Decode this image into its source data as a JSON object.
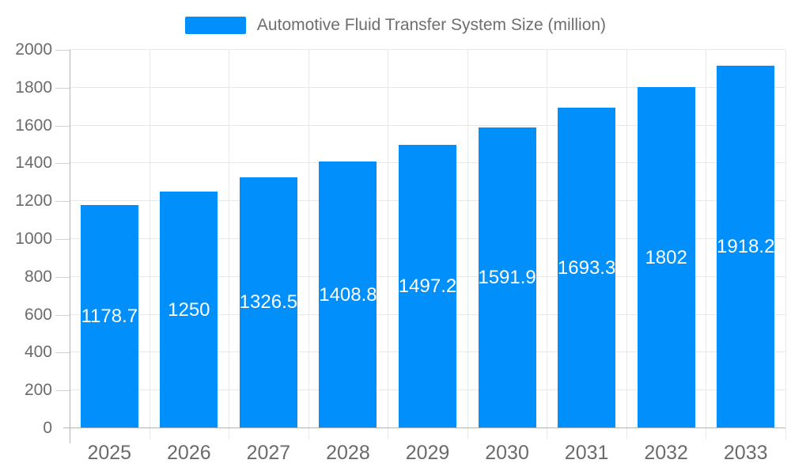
{
  "legend": {
    "label": "Automotive Fluid Transfer System Size (million)"
  },
  "colors": {
    "bar": "#008FFB",
    "bar_value_text": "#ffffff",
    "axis_text": "#6b6b6b",
    "legend_text": "#6e6e6e",
    "grid_line": "#e8e8e8",
    "axis_line": "#b3b3b3",
    "tick_line": "#d2d2d2",
    "background": "#ffffff"
  },
  "chart_data": {
    "type": "bar",
    "title": "Automotive Fluid Transfer System Size (million)",
    "categories": [
      "2025",
      "2026",
      "2027",
      "2028",
      "2029",
      "2030",
      "2031",
      "2032",
      "2033"
    ],
    "values": [
      1178.7,
      1250,
      1326.5,
      1408.8,
      1497.2,
      1591.9,
      1693.3,
      1802,
      1918.2
    ],
    "value_labels": [
      "1178.7",
      "1250",
      "1326.5",
      "1408.8",
      "1497.2",
      "1591.9",
      "1693.3",
      "1802",
      "1918.2"
    ],
    "xlabel": "",
    "ylabel": "",
    "ylim": [
      0,
      2000
    ],
    "yticks": [
      0,
      200,
      400,
      600,
      800,
      1000,
      1200,
      1400,
      1600,
      1800,
      2000
    ],
    "grid": true,
    "legend_position": "top",
    "data_label_position": "center-of-bar"
  }
}
